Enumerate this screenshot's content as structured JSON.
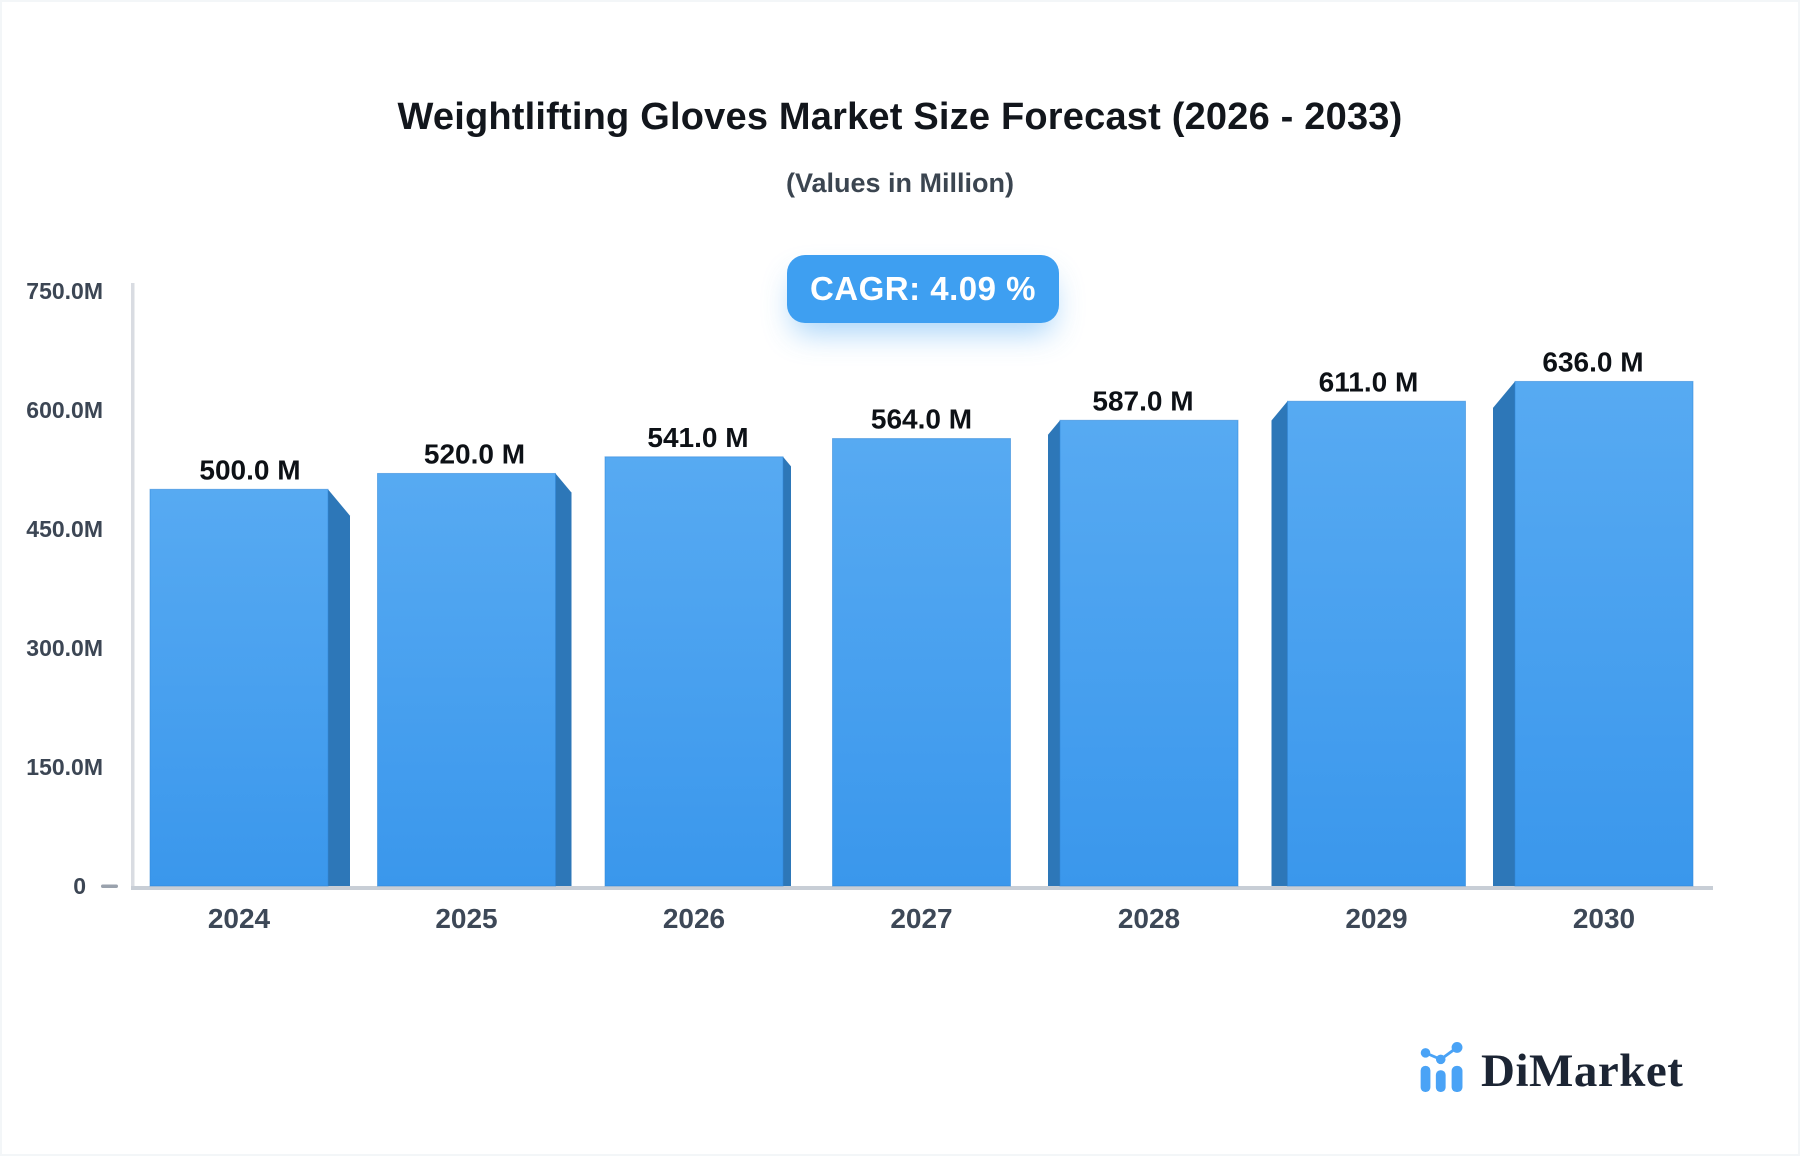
{
  "header": {
    "title": "Weightlifting Gloves Market Size Forecast (2026 - 2033)",
    "subtitle": "(Values in Million)"
  },
  "badge": {
    "label": "CAGR: 4.09 %"
  },
  "chart_data": {
    "type": "bar",
    "title": "Weightlifting Gloves Market Size Forecast (2026 - 2033)",
    "subtitle": "(Values in Million)",
    "unit": "Million",
    "categories": [
      "2024",
      "2025",
      "2026",
      "2027",
      "2028",
      "2029",
      "2030"
    ],
    "values": [
      500.0,
      520.0,
      541.0,
      564.0,
      587.0,
      611.0,
      636.0
    ],
    "value_labels": [
      "500.0 M",
      "520.0 M",
      "541.0 M",
      "564.0 M",
      "587.0 M",
      "611.0 M",
      "636.0 M"
    ],
    "ylim": [
      0,
      750
    ],
    "yticks": [
      {
        "value": 0,
        "label": "0"
      },
      {
        "value": 150,
        "label": "150.0M"
      },
      {
        "value": 300,
        "label": "300.0M"
      },
      {
        "value": 450,
        "label": "450.0M"
      },
      {
        "value": 600,
        "label": "600.0M"
      },
      {
        "value": 750,
        "label": "750.0M"
      }
    ],
    "grid": false,
    "legend": false,
    "style": "3d-perspective-bars"
  },
  "colors": {
    "bar_face_top": "#57aaf2",
    "bar_face_bottom": "#3a97ec",
    "bar_face_edge": "#2f87d8",
    "bar_side": "#2d77b8",
    "badge_bg": "#3e9ff1",
    "badge_text": "#ffffff",
    "axis_line": "#d9dce2",
    "baseline": "#c8ced6",
    "zero_tick": "#9aa2ad",
    "y_tick_text": "#3c4654",
    "x_tick_text": "#3d4857",
    "value_text": "#0d1116",
    "title_text": "#12161c",
    "subtitle_text": "#3b4550",
    "logo_blue": "#4aa3f6",
    "logo_text": "#1c2534"
  },
  "logo": {
    "text": "DiMarket",
    "icon": "mini-bar-chart-icon"
  }
}
